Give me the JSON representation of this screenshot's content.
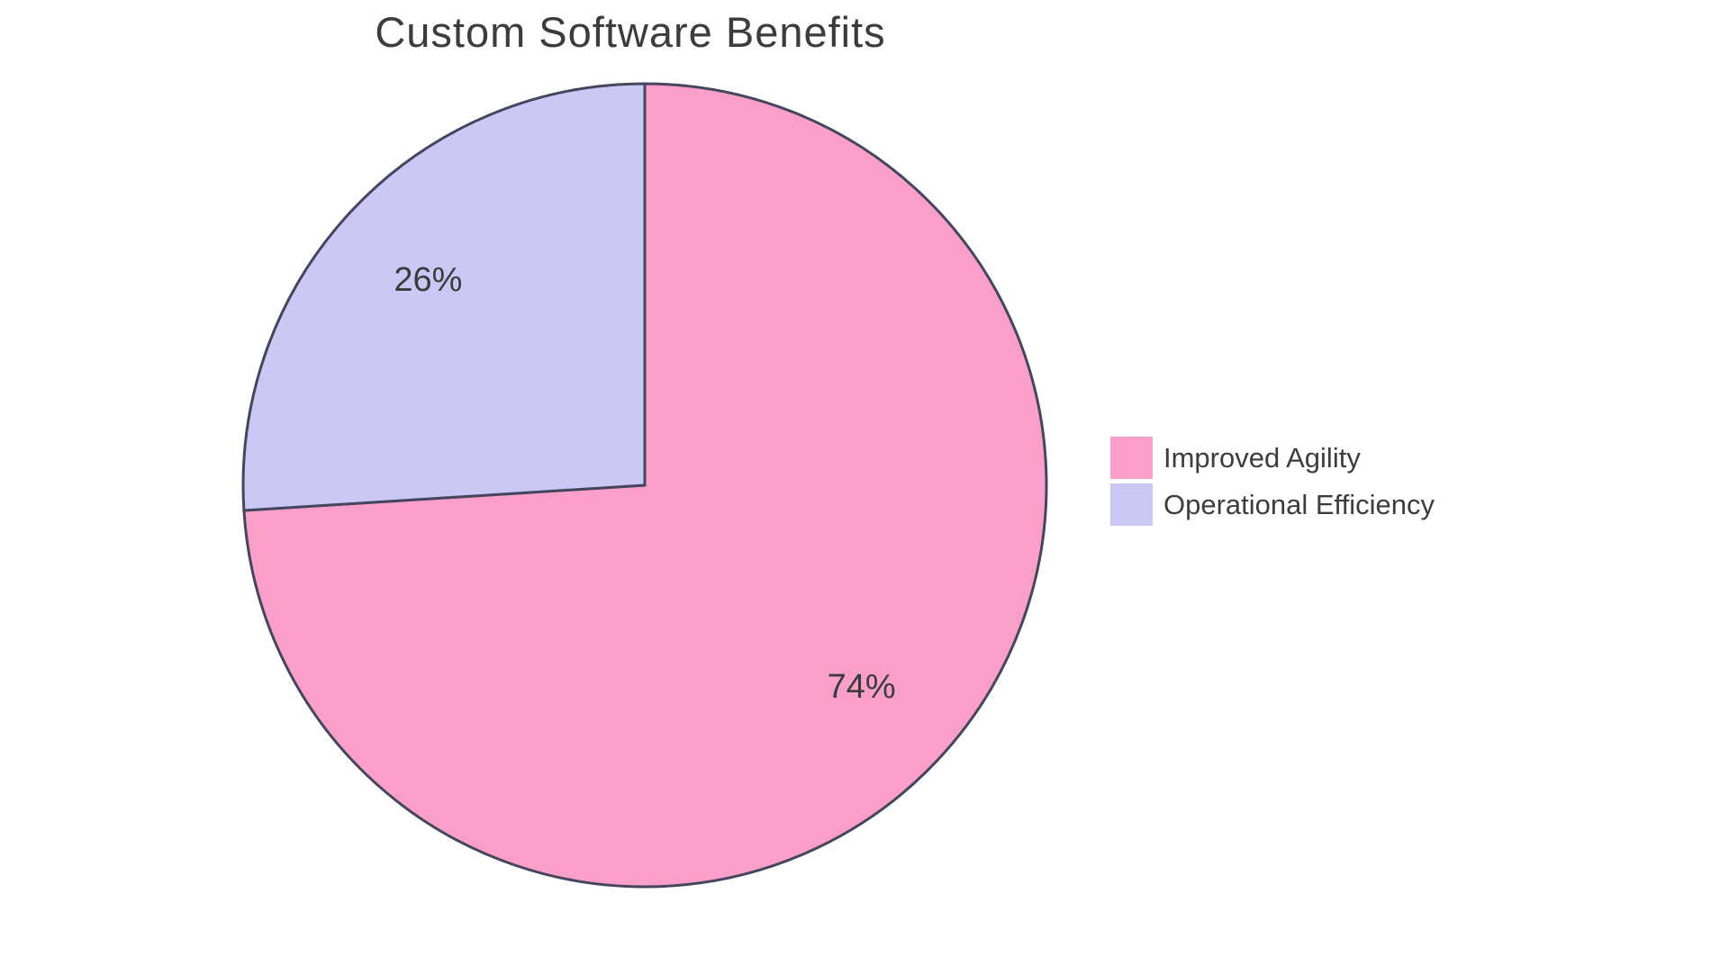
{
  "page": {
    "background": "#FFFFFF"
  },
  "chart_data": {
    "type": "pie",
    "title": "Custom Software Benefits",
    "labels": [
      "Improved Agility",
      "Operational Efficiency"
    ],
    "values": [
      74,
      26
    ],
    "value_labels": [
      "74%",
      "26%"
    ],
    "colors": [
      "#FA9FC9",
      "#CBC8F6"
    ],
    "outline_color": "#45465E",
    "title_color": "#3C3C3C",
    "label_color": "#3C3C3C",
    "legend_position": "right",
    "start_angle": "top",
    "direction": "clockwise"
  },
  "legend": {
    "items": [
      {
        "label": "Improved Agility",
        "color": "#FA9FC9"
      },
      {
        "label": "Operational Efficiency",
        "color": "#CBC8F6"
      }
    ]
  }
}
